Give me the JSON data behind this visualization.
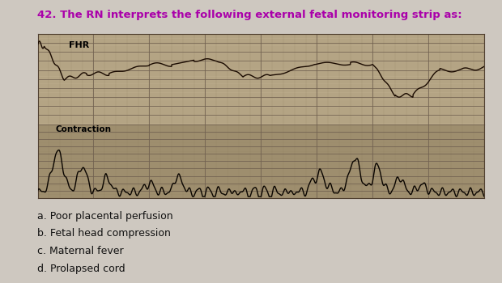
{
  "title": "42. The RN interprets the following external fetal monitoring strip as:",
  "title_color": "#aa00aa",
  "title_fontsize": 9.5,
  "fhr_label": "FHR",
  "contraction_label": "Contraction",
  "answer_choices": [
    "a. Poor placental perfusion",
    "b. Fetal head compression",
    "c. Maternal fever",
    "d. Prolapsed cord"
  ],
  "answer_fontsize": 9,
  "answer_color": "#111111",
  "bg_color": "#cec8c0",
  "strip_bg_top": "#b8a888",
  "strip_bg_bot": "#a09070",
  "grid_major_color": "#706050",
  "grid_minor_color": "#908060",
  "fhr_line_color": "#1a0a00",
  "contraction_line_color": "#0a0500",
  "strip_border_color": "#504030"
}
